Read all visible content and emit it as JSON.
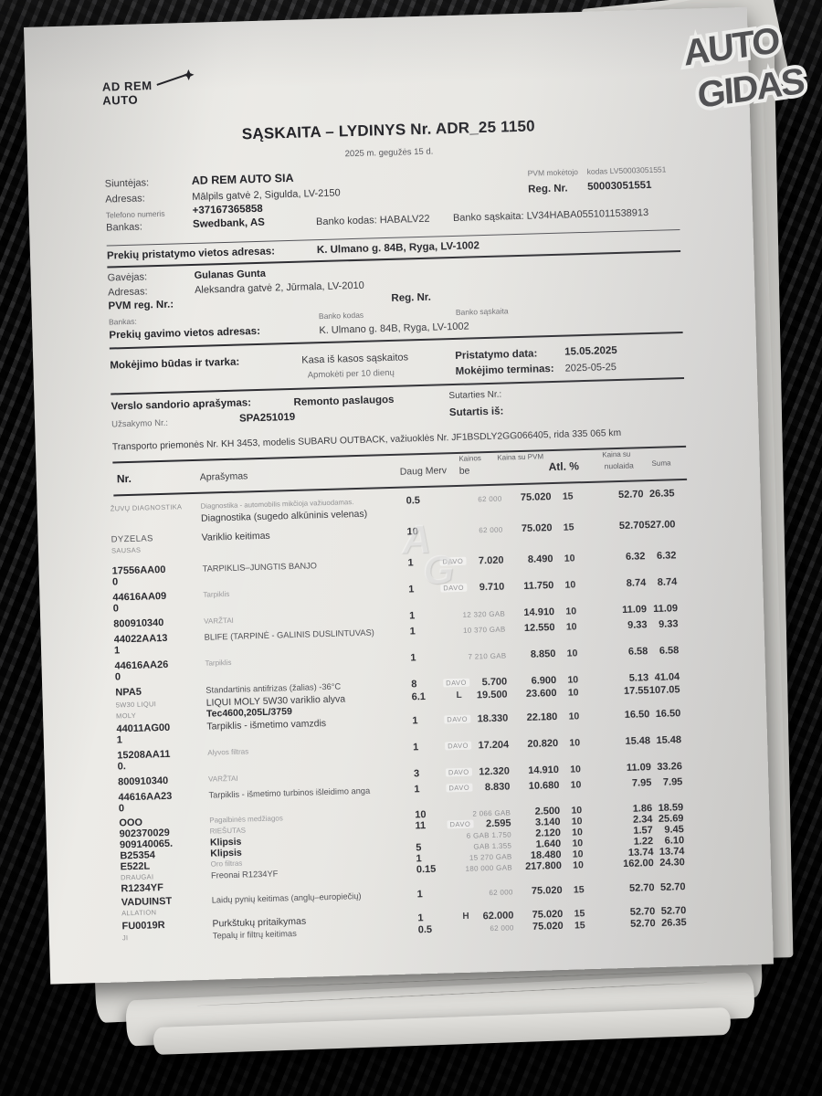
{
  "watermark": {
    "line1": "AUTO",
    "line2": "GIDAS",
    "monogram_a": "A",
    "monogram_g": "G"
  },
  "logo": {
    "line1": "AD REM",
    "line2": "AUTO"
  },
  "title": "SĄSKAITA – LYDINYS Nr. ADR_25 1150",
  "date": "2025 m. gegužės 15 d.",
  "sender": {
    "label_siuntejas": "Siuntėjas:",
    "name": "AD REM AUTO SIA",
    "label_adresas": "Adresas:",
    "address": "Mālpils gatvė 2, Sigulda, LV-2150",
    "label_phone": "Telefono numeris",
    "phone": "+37167365858",
    "label_bankas": "Bankas:",
    "bank": "Swedbank, AS",
    "bank_code": "Banko kodas: HABALV22",
    "bank_account": "Banko sąskaita: LV34HABA0551011538913",
    "label_pvm": "PVM mokėtojo",
    "pvm_code": "kodas LV50003051551",
    "label_reg": "Reg. Nr.",
    "reg_nr": "50003051551"
  },
  "delivery": {
    "label": "Prekių pristatymo vietos adresas:",
    "value": "K. Ulmano g. 84B, Ryga, LV-1002"
  },
  "receiver": {
    "label_gavejas": "Gavėjas:",
    "name": "Gulanas Gunta",
    "label_adresas": "Adresas:",
    "address": "Aleksandra gatvė 2, Jūrmala, LV-2010",
    "label_pvm": "PVM reg. Nr.:",
    "label_reg": "Reg. Nr.",
    "label_bankas": "Bankas:",
    "label_bank_code": "Banko kodas",
    "label_bank_account": "Banko sąskaita",
    "label_receive": "Prekių gavimo vietos adresas:",
    "receive_value": "K. Ulmano g. 84B, Ryga, LV-1002"
  },
  "payment": {
    "label_method": "Mokėjimo būdas ir tvarka:",
    "method": "Kasa iš kasos sąskaitos",
    "method_note": "Apmokėti per 10 dienų",
    "label_delivery_date": "Pristatymo data:",
    "delivery_date": "15.05.2025",
    "label_due": "Mokėjimo terminas:",
    "due_date": "2025-05-25"
  },
  "deal": {
    "label_desc": "Verslo sandorio aprašymas:",
    "desc": "Remonto paslaugos",
    "label_contract": "Sutarties Nr.:",
    "label_order": "Užsakymo Nr.:",
    "order_nr": "SPA251019",
    "label_contract_from": "Sutartis iš:"
  },
  "vehicle": "Transporto priemonės Nr. KH 3453, modelis SUBARU OUTBACK, važiuoklės Nr. JF1BSDLY2GG066405, rida 335 065 km",
  "table": {
    "headers": {
      "nr": "Nr.",
      "aprasymas": "Aprašymas",
      "daug_merv": "Daug Merv",
      "kainos": "Kainos",
      "be": "be",
      "kaina_su_pvm": "Kaina su PVM",
      "atl": "Atl. %",
      "kaina_su": "Kaina su",
      "nuolaida": "nuolaida",
      "suma": "Suma"
    },
    "rows": [
      {
        "code_lines": [
          [
            "ŽUVŲ DIAGNOSTIKA",
            "tiny"
          ]
        ],
        "note": "Diagnostika - automobilis mikčioja važiuodamas.",
        "desc": "Diagnostika (sugedo alkūninis velenas)",
        "desc_style": "normal",
        "qty": "0.5",
        "unit": "",
        "price": "62 000",
        "price_faint": true,
        "pvm": "75.020",
        "atl": "15",
        "disc": "52.70",
        "sum": "26.35"
      },
      {
        "code_lines": [
          [
            "DYZELAS",
            "small"
          ],
          [
            "SAUSAS",
            "tiny"
          ]
        ],
        "desc": "Variklio keitimas",
        "desc_style": "normal",
        "qty": "10",
        "unit": "",
        "price": "62 000",
        "price_faint": true,
        "pvm": "75.020",
        "atl": "15",
        "disc": "52.70",
        "sum": "527.00"
      },
      {
        "code_lines": [
          [
            "17556AA00",
            "bold"
          ],
          [
            "0",
            "bold"
          ]
        ],
        "desc": "TARPIKLIS–JUNGTIS BANJO",
        "desc_style": "small",
        "qty": "1",
        "unit": "DAVO",
        "price": "7.020",
        "price_faint": false,
        "pvm": "8.490",
        "atl": "10",
        "disc": "6.32",
        "sum": "6.32"
      },
      {
        "code_lines": [
          [
            "44616AA09",
            "bold"
          ],
          [
            "0",
            "bold"
          ]
        ],
        "desc": "Tarpiklis",
        "desc_style": "tiny",
        "qty": "1",
        "unit": "DAVO",
        "price": "9.710",
        "price_faint": false,
        "pvm": "11.750",
        "atl": "10",
        "disc": "8.74",
        "sum": "8.74"
      },
      {
        "code_lines": [
          [
            "800910340",
            "bold"
          ]
        ],
        "desc": "VARŽTAI",
        "desc_style": "tiny",
        "qty": "1",
        "unit": "",
        "price": "12 320 GAB",
        "price_faint": true,
        "pvm": "14.910",
        "atl": "10",
        "disc": "11.09",
        "sum": "11.09"
      },
      {
        "code_lines": [
          [
            "44022AA13",
            "bold"
          ],
          [
            "1",
            "bold"
          ]
        ],
        "desc": "BLIFE (TARPINĖ - GALINIS DUSLINTUVAS)",
        "desc_style": "small",
        "qty": "1",
        "unit": "",
        "price": "10 370 GAB",
        "price_faint": true,
        "pvm": "12.550",
        "atl": "10",
        "disc": "9.33",
        "sum": "9.33"
      },
      {
        "code_lines": [
          [
            "44616AA26",
            "bold"
          ],
          [
            "0",
            "bold"
          ]
        ],
        "desc": "Tarpiklis",
        "desc_style": "tiny",
        "qty": "1",
        "unit": "",
        "price": "7 210 GAB",
        "price_faint": true,
        "pvm": "8.850",
        "atl": "10",
        "disc": "6.58",
        "sum": "6.58"
      },
      {
        "code_lines": [
          [
            "NPA5",
            "bold"
          ]
        ],
        "desc": "Standartinis antifrizas (žalias) -36°C",
        "desc_style": "small",
        "qty": "8",
        "unit": "DAVO",
        "price": "5.700",
        "price_faint": false,
        "pvm": "6.900",
        "atl": "10",
        "disc": "5.13",
        "sum": "41.04"
      },
      {
        "code_lines": [
          [
            "5W30 LIQUI",
            "tiny"
          ],
          [
            "MOLY",
            "tiny"
          ]
        ],
        "desc": "LIQUI MOLY 5W30 variklio alyva",
        "desc_style": "normal",
        "desc2": "Tec4600,205L/3759",
        "qty": "6.1",
        "unit": "L",
        "price": "19.500",
        "price_faint": false,
        "pvm": "23.600",
        "atl": "10",
        "disc": "17.55",
        "sum": "107.05"
      },
      {
        "code_lines": [
          [
            "44011AG00",
            "bold"
          ],
          [
            "1",
            "bold"
          ]
        ],
        "desc": "Tarpiklis - išmetimo vamzdis",
        "desc_style": "normal",
        "qty": "1",
        "unit": "DAVO",
        "price": "18.330",
        "price_faint": false,
        "pvm": "22.180",
        "atl": "10",
        "disc": "16.50",
        "sum": "16.50"
      },
      {
        "code_lines": [
          [
            "15208AA11",
            "bold"
          ],
          [
            "0.",
            "bold"
          ]
        ],
        "desc": "Alyvos filtras",
        "desc_style": "tiny",
        "qty": "1",
        "unit": "DAVO",
        "price": "17.204",
        "price_faint": false,
        "pvm": "20.820",
        "atl": "10",
        "disc": "15.48",
        "sum": "15.48"
      },
      {
        "code_lines": [
          [
            "800910340",
            "bold"
          ]
        ],
        "desc": "VARŽTAI",
        "desc_style": "tiny",
        "qty": "3",
        "unit": "DAVO",
        "price": "12.320",
        "price_faint": false,
        "pvm": "14.910",
        "atl": "10",
        "disc": "11.09",
        "sum": "33.26"
      },
      {
        "code_lines": [
          [
            "44616AA23",
            "bold"
          ],
          [
            "0",
            "bold"
          ]
        ],
        "desc": "Tarpiklis - išmetimo turbinos išleidimo anga",
        "desc_style": "small",
        "qty": "1",
        "unit": "DAVO",
        "price": "8.830",
        "price_faint": false,
        "pvm": "10.680",
        "atl": "10",
        "disc": "7.95",
        "sum": "7.95"
      },
      {
        "code_lines": [
          [
            "OOO",
            "bold"
          ]
        ],
        "desc": "Pagalbinės medžiagos",
        "desc_style": "tiny",
        "qty": "10",
        "unit": "",
        "price": "2 066 GAB",
        "price_faint": true,
        "pvm": "2.500",
        "atl": "10",
        "disc": "1.86",
        "sum": "18.59"
      },
      {
        "code_lines": [
          [
            "902370029",
            "bold"
          ]
        ],
        "desc": "RIEŠUTAS",
        "desc_style": "tiny",
        "qty": "11",
        "unit": "DAVO",
        "price": "2.595",
        "price_faint": false,
        "pvm": "3.140",
        "atl": "10",
        "disc": "2.34",
        "sum": "25.69"
      },
      {
        "code_lines": [
          [
            "909140065.",
            "bold"
          ]
        ],
        "desc": "Klipsis",
        "desc_style": "bold",
        "qty": "",
        "unit": "",
        "price": "6 GAB 1.750",
        "price_faint": true,
        "pvm": "2.120",
        "atl": "10",
        "disc": "1.57",
        "sum": "9.45"
      },
      {
        "code_lines": [
          [
            "B25354",
            "bold"
          ]
        ],
        "desc": "Klipsis",
        "desc_style": "bold",
        "qty": "5",
        "unit": "",
        "price": "GAB 1.355",
        "price_faint": true,
        "pvm": "1.640",
        "atl": "10",
        "disc": "1.22",
        "sum": "6.10"
      },
      {
        "code_lines": [
          [
            "E522L",
            "bold"
          ]
        ],
        "desc": "Oro filtras",
        "desc_style": "tiny",
        "qty": "1",
        "unit": "",
        "price": "15 270 GAB",
        "price_faint": true,
        "pvm": "18.480",
        "atl": "10",
        "disc": "13.74",
        "sum": "13.74"
      },
      {
        "code_lines": [
          [
            "DRAUGAI",
            "tiny"
          ],
          [
            "R1234YF",
            "bold"
          ]
        ],
        "desc": "Freonai R1234YF",
        "desc_style": "small",
        "qty": "0.15",
        "unit": "",
        "price": "180 000 GAB",
        "price_faint": true,
        "pvm": "217.800",
        "atl": "10",
        "disc": "162.00",
        "sum": "24.30"
      },
      {
        "code_lines": [
          [
            "VADUINST",
            "bold"
          ],
          [
            "ALLATION",
            "tiny"
          ]
        ],
        "desc": "Laidų pynių keitimas (anglų–europiečių)",
        "desc_style": "small",
        "qty": "1",
        "unit": "",
        "price": "62 000",
        "price_faint": true,
        "pvm": "75.020",
        "atl": "15",
        "disc": "52.70",
        "sum": "52.70"
      },
      {
        "code_lines": [
          [
            "FU0019R",
            "bold"
          ]
        ],
        "desc": "Purkštukų pritaikymas",
        "desc_style": "normal",
        "qty": "1",
        "unit": "H",
        "price": "62.000",
        "price_faint": false,
        "pvm": "75.020",
        "atl": "15",
        "disc": "52.70",
        "sum": "52.70"
      },
      {
        "code_lines": [
          [
            "JI",
            "tiny"
          ]
        ],
        "desc": "Tepalų ir filtrų keitimas",
        "desc_style": "small",
        "qty": "0.5",
        "unit": "",
        "price": "62 000",
        "price_faint": true,
        "pvm": "75.020",
        "atl": "15",
        "disc": "52.70",
        "sum": "26.35"
      }
    ]
  }
}
